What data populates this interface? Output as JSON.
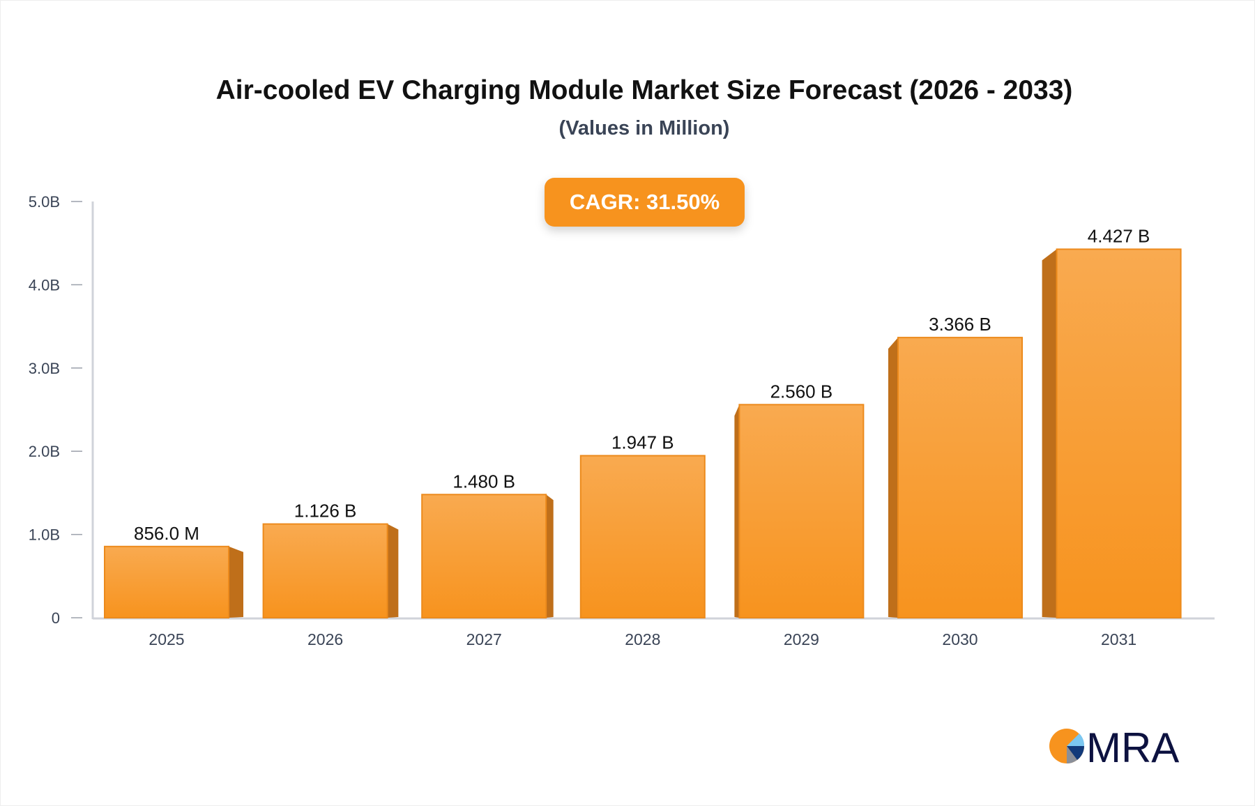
{
  "chart_data": {
    "type": "bar",
    "title": "Air-cooled EV Charging Module Market Size Forecast (2026 - 2033)",
    "subtitle": "(Values in Million)",
    "annotation": "CAGR: 31.50%",
    "categories": [
      "2025",
      "2026",
      "2027",
      "2028",
      "2029",
      "2030",
      "2031"
    ],
    "values": [
      856.0,
      1126,
      1480,
      1947,
      2560,
      3366,
      4427
    ],
    "value_unit": "Million",
    "data_labels": [
      "856.0 M",
      "1.126 B",
      "1.480 B",
      "1.947 B",
      "2.560 B",
      "3.366 B",
      "4.427 B"
    ],
    "yticks": [
      0,
      1000,
      2000,
      3000,
      4000,
      5000
    ],
    "ytick_labels": [
      "0",
      "1.0B",
      "2.0B",
      "3.0B",
      "4.0B",
      "5.0B"
    ],
    "ylim": [
      0,
      5000
    ],
    "grid": false,
    "colors": {
      "bar_top": "#f9aa50",
      "bar_bottom": "#f7931e",
      "bar_side": "#bf6f1a",
      "axis": "#d0d3da",
      "cagr_bg": "#f7931e"
    }
  },
  "logo": {
    "text": "MRA"
  }
}
